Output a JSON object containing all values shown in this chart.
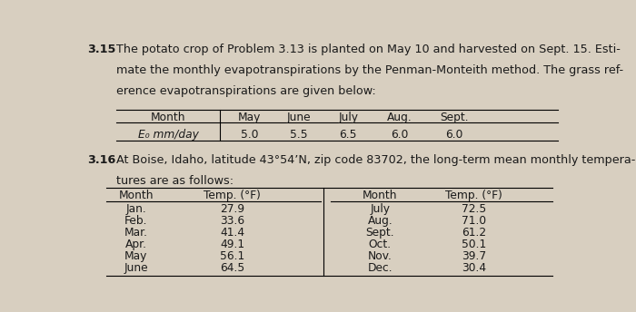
{
  "bg_color": "#d8cfc0",
  "text_color": "#1a1a1a",
  "problem_315": {
    "number": "3.15",
    "text_line1": "The potato crop of Problem 3.13 is planted on May 10 and harvested on Sept. 15. Esti-",
    "text_line2": "mate the monthly evapotranspirations by the Penman-Monteith method. The grass ref-",
    "text_line3": "erence evapotranspirations are given below:",
    "table": {
      "col_header": [
        "Month",
        "May",
        "June",
        "July",
        "Aug.",
        "Sept."
      ],
      "row_label": "E₀ mm/day",
      "values": [
        5.0,
        5.5,
        6.5,
        6.0,
        6.0
      ]
    }
  },
  "problem_316": {
    "number": "3.16",
    "text_line1": "At Boise, Idaho, latitude 43°54’N, zip code 83702, the long-term mean monthly tempera-",
    "text_line2": "tures are as follows:",
    "table_left": {
      "months": [
        "Jan.",
        "Feb.",
        "Mar.",
        "Apr.",
        "May",
        "June"
      ],
      "temps": [
        27.9,
        33.6,
        41.4,
        49.1,
        56.1,
        64.5
      ]
    },
    "table_right": {
      "months": [
        "July",
        "Aug.",
        "Sept.",
        "Oct.",
        "Nov.",
        "Dec."
      ],
      "temps": [
        72.5,
        71.0,
        61.2,
        50.1,
        39.7,
        30.4
      ]
    }
  }
}
